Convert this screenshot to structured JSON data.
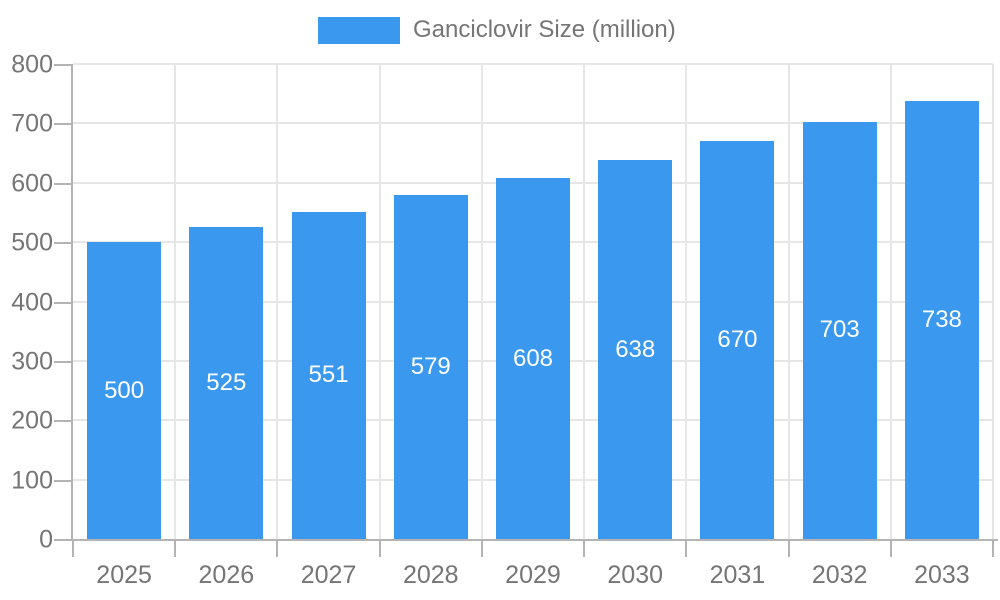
{
  "legend": {
    "label": "Ganciclovir Size (million)"
  },
  "chart_data": {
    "type": "bar",
    "title": "",
    "series_name": "Ganciclovir Size (million)",
    "categories": [
      "2025",
      "2026",
      "2027",
      "2028",
      "2029",
      "2030",
      "2031",
      "2032",
      "2033"
    ],
    "values": [
      500,
      525,
      551,
      579,
      608,
      638,
      670,
      703,
      738
    ],
    "xlabel": "",
    "ylabel": "",
    "ylim": [
      0,
      800
    ],
    "ytick_step": 100,
    "yticks": [
      0,
      100,
      200,
      300,
      400,
      500,
      600,
      700,
      800
    ],
    "grid": true,
    "legend_position": "top-center",
    "bar_color": "#3a99ee",
    "value_label_color": "#ffffff",
    "axis_label_color": "#757575"
  }
}
